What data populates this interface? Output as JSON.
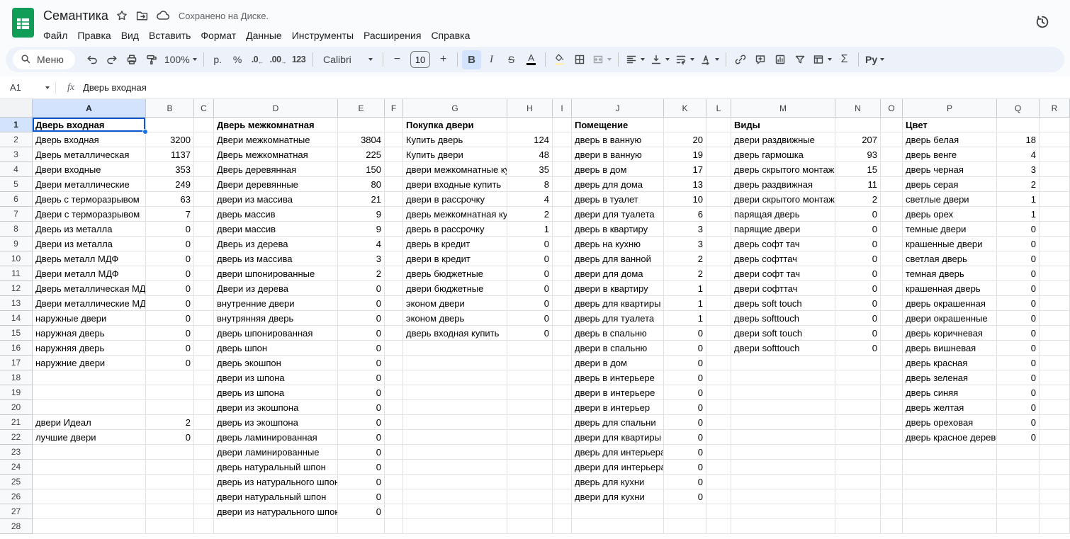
{
  "app": {
    "title": "Семантика",
    "saved_status": "Сохранено на Диске.",
    "menu": [
      "Файл",
      "Правка",
      "Вид",
      "Вставить",
      "Формат",
      "Данные",
      "Инструменты",
      "Расширения",
      "Справка"
    ]
  },
  "toolbar": {
    "search_label": "Меню",
    "zoom_level": "100%",
    "currency_format": "р.",
    "percent_format": "%",
    "decrease_decimals": ".0",
    "increase_decimals": ".00",
    "more_formats": "123",
    "font_name": "Calibri",
    "font_size": "10",
    "minus": "−",
    "plus": "+",
    "bold": "B",
    "italic": "I",
    "strikethrough": "S",
    "text_color": "A",
    "sum": "Σ",
    "input_tools": "Ру"
  },
  "formula_bar": {
    "cell_ref": "A1",
    "content": "Дверь входная"
  },
  "colors": {
    "accent": "#0b57d0",
    "selection_header": "#d3e3fd",
    "toolbar_bg": "#edf2fa",
    "logo_green": "#0f9d58",
    "fill_handle": "#1a73e8"
  },
  "sheet": {
    "columns": [
      "A",
      "B",
      "C",
      "D",
      "E",
      "F",
      "G",
      "H",
      "I",
      "J",
      "K",
      "L",
      "M",
      "N",
      "O",
      "P",
      "Q",
      "R"
    ],
    "visible_rows": 28,
    "selected_cell": "A1",
    "selected_column": "A",
    "selected_row": 1,
    "blocks": [
      {
        "col": "A",
        "value_col": "B",
        "title": "Дверь входная",
        "items": [
          [
            2,
            "Дверь входная",
            3200
          ],
          [
            3,
            "Дверь металлическая",
            1137
          ],
          [
            4,
            "Двери входные",
            353
          ],
          [
            5,
            "Двери металлические",
            249
          ],
          [
            6,
            "Дверь с терморазрывом",
            63
          ],
          [
            7,
            "Двери с терморазрывом",
            7
          ],
          [
            8,
            "Дверь из металла",
            0
          ],
          [
            9,
            "Двери из металла",
            0
          ],
          [
            10,
            "Дверь металл МДФ",
            0
          ],
          [
            11,
            "Двери металл МДФ",
            0
          ],
          [
            12,
            "Дверь металлическая МДФ",
            0
          ],
          [
            13,
            "Двери металлические МДФ",
            0
          ],
          [
            14,
            "наружные двери",
            0
          ],
          [
            15,
            "наружная дверь",
            0
          ],
          [
            16,
            "наружняя дверь",
            0
          ],
          [
            17,
            "наружние двери",
            0
          ],
          [
            21,
            "двери Идеал",
            2
          ],
          [
            22,
            "лучшие двери",
            0
          ]
        ]
      },
      {
        "col": "D",
        "value_col": "E",
        "title": "Дверь межкомнатная",
        "items": [
          [
            2,
            "Двери межкомнатные",
            3804
          ],
          [
            3,
            "Дверь межкомнатная",
            225
          ],
          [
            4,
            "Дверь деревянная",
            150
          ],
          [
            5,
            "Двери деревянные",
            80
          ],
          [
            6,
            "двери из массива",
            21
          ],
          [
            7,
            "дверь массив",
            9
          ],
          [
            8,
            "двери массив",
            9
          ],
          [
            9,
            "Дверь из дерева",
            4
          ],
          [
            10,
            "дверь из массива",
            3
          ],
          [
            11,
            "двери шпонированные",
            2
          ],
          [
            12,
            "Двери из дерева",
            0
          ],
          [
            13,
            "внутренние двери",
            0
          ],
          [
            14,
            "внутрянняя дверь",
            0
          ],
          [
            15,
            "дверь шпонированная",
            0
          ],
          [
            16,
            "дверь шпон",
            0
          ],
          [
            17,
            "дверь экошпон",
            0
          ],
          [
            18,
            "двери из шпона",
            0
          ],
          [
            19,
            "дверь из шпона",
            0
          ],
          [
            20,
            "двери из экошпона",
            0
          ],
          [
            21,
            "дверь из экошпона",
            0
          ],
          [
            22,
            "дверь ламинированная",
            0
          ],
          [
            23,
            "двери ламинированные",
            0
          ],
          [
            24,
            "дверь натуральный шпон",
            0
          ],
          [
            25,
            "дверь из натурального шпона",
            0
          ],
          [
            26,
            "двери натуральный шпон",
            0
          ],
          [
            27,
            "двери из натурального шпона",
            0
          ]
        ]
      },
      {
        "col": "G",
        "value_col": "H",
        "title": "Покупка двери",
        "items": [
          [
            2,
            "Купить дверь",
            124
          ],
          [
            3,
            "Купить двери",
            48
          ],
          [
            4,
            "двери межкомнатные купить",
            35
          ],
          [
            5,
            "двери входные купить",
            8
          ],
          [
            6,
            "двери в рассрочку",
            4
          ],
          [
            7,
            "дверь межкомнатная купить",
            2
          ],
          [
            8,
            "дверь в рассрочку",
            1
          ],
          [
            9,
            "дверь в кредит",
            0
          ],
          [
            10,
            "двери в кредит",
            0
          ],
          [
            11,
            "дверь бюджетные",
            0
          ],
          [
            12,
            "двери бюджетные",
            0
          ],
          [
            13,
            "эконом двери",
            0
          ],
          [
            14,
            "эконом дверь",
            0
          ],
          [
            15,
            "дверь входная купить",
            0
          ]
        ]
      },
      {
        "col": "J",
        "value_col": "K",
        "title": "Помещение",
        "items": [
          [
            2,
            "дверь в ванную",
            20
          ],
          [
            3,
            "двери в ванную",
            19
          ],
          [
            4,
            "дверь в дом",
            17
          ],
          [
            5,
            "дверь для дома",
            13
          ],
          [
            6,
            "дверь в туалет",
            10
          ],
          [
            7,
            "двери для туалета",
            6
          ],
          [
            8,
            "дверь в квартиру",
            3
          ],
          [
            9,
            "дверь на кухню",
            3
          ],
          [
            10,
            "дверь для ванной",
            2
          ],
          [
            11,
            "двери для дома",
            2
          ],
          [
            12,
            "двери в квартиру",
            1
          ],
          [
            13,
            "дверь для квартиры",
            1
          ],
          [
            14,
            "дверь для туалета",
            1
          ],
          [
            15,
            "дверь в спальню",
            0
          ],
          [
            16,
            "двери в спальню",
            0
          ],
          [
            17,
            "двери в дом",
            0
          ],
          [
            18,
            "дверь в интерьере",
            0
          ],
          [
            19,
            "двери в интерьере",
            0
          ],
          [
            20,
            "двери в интерьер",
            0
          ],
          [
            21,
            "дверь для спальни",
            0
          ],
          [
            22,
            "двери для квартиры",
            0
          ],
          [
            23,
            "дверь для интерьера",
            0
          ],
          [
            24,
            "двери для интерьера",
            0
          ],
          [
            25,
            "дверь для кухни",
            0
          ],
          [
            26,
            "двери для кухни",
            0
          ]
        ]
      },
      {
        "col": "M",
        "value_col": "N",
        "title": "Виды",
        "items": [
          [
            2,
            "двери раздвижные",
            207
          ],
          [
            3,
            "дверь гармошка",
            93
          ],
          [
            4,
            "дверь скрытого монтажа",
            15
          ],
          [
            5,
            "дверь раздвижная",
            11
          ],
          [
            6,
            "двери скрытого монтажа",
            2
          ],
          [
            7,
            "парящая дверь",
            0
          ],
          [
            8,
            "парящие двери",
            0
          ],
          [
            9,
            "дверь софт тач",
            0
          ],
          [
            10,
            "дверь софттач",
            0
          ],
          [
            11,
            "двери софт тач",
            0
          ],
          [
            12,
            "двери софттач",
            0
          ],
          [
            13,
            "дверь soft touch",
            0
          ],
          [
            14,
            "дверь softtouch",
            0
          ],
          [
            15,
            "двери soft touch",
            0
          ],
          [
            16,
            "двери softtouch",
            0
          ]
        ]
      },
      {
        "col": "P",
        "value_col": "Q",
        "title": "Цвет",
        "items": [
          [
            2,
            "дверь белая",
            18
          ],
          [
            3,
            "дверь венге",
            4
          ],
          [
            4,
            "дверь черная",
            3
          ],
          [
            5,
            "дверь серая",
            2
          ],
          [
            6,
            "светлые двери",
            1
          ],
          [
            7,
            "дверь орех",
            1
          ],
          [
            8,
            "темные двери",
            0
          ],
          [
            9,
            "крашенные двери",
            0
          ],
          [
            10,
            "светлая дверь",
            0
          ],
          [
            11,
            "темная дверь",
            0
          ],
          [
            12,
            "крашенная дверь",
            0
          ],
          [
            13,
            "дверь окрашенная",
            0
          ],
          [
            14,
            "двери окрашенные",
            0
          ],
          [
            15,
            "дверь коричневая",
            0
          ],
          [
            16,
            "дверь вишневая",
            0
          ],
          [
            17,
            "дверь красная",
            0
          ],
          [
            18,
            "дверь зеленая",
            0
          ],
          [
            19,
            "дверь синяя",
            0
          ],
          [
            20,
            "дверь желтая",
            0
          ],
          [
            21,
            "дверь ореховая",
            0
          ],
          [
            22,
            "дверь красное дерево",
            0
          ]
        ]
      }
    ]
  }
}
